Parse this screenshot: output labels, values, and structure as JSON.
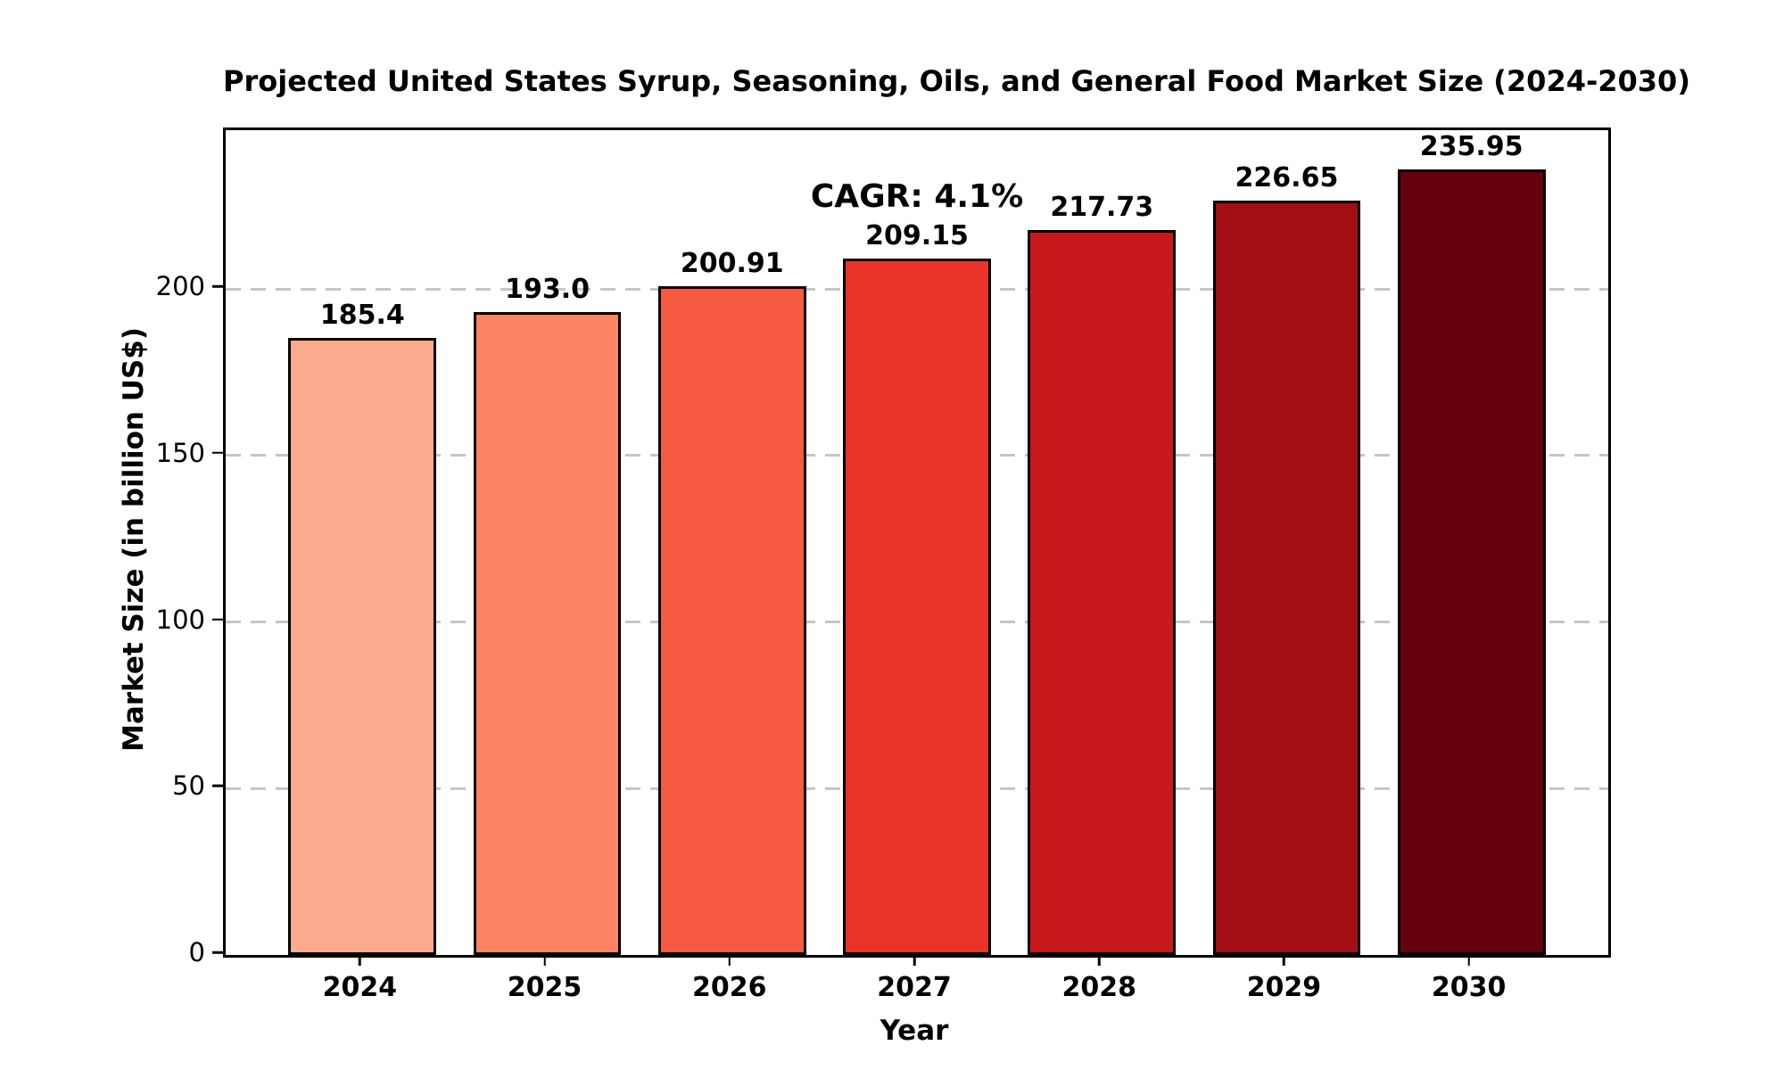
{
  "chart_data": {
    "type": "bar",
    "title": "Projected United States Syrup, Seasoning, Oils, and General Food Market Size (2024-2030)",
    "xlabel": "Year",
    "ylabel": "Market Size (in billion US$)",
    "categories": [
      "2024",
      "2025",
      "2026",
      "2027",
      "2028",
      "2029",
      "2030"
    ],
    "values": [
      185.4,
      193.0,
      200.91,
      209.15,
      217.73,
      226.65,
      235.95
    ],
    "value_labels": [
      "185.4",
      "193.0",
      "200.91",
      "209.15",
      "217.73",
      "226.65",
      "235.95"
    ],
    "bar_colors": [
      "#fcab8f",
      "#fc8464",
      "#f65a41",
      "#e93329",
      "#c7181c",
      "#a30f15",
      "#67000d"
    ],
    "bar_edge_color": "#000000",
    "ylim": [
      0,
      247.75
    ],
    "yticks": [
      0,
      50,
      100,
      150,
      200
    ],
    "grid": "horizontal dashed",
    "grid_color": "#c6c6c6",
    "legend_position": "none",
    "annotation": {
      "text": "CAGR: 4.1%"
    }
  }
}
